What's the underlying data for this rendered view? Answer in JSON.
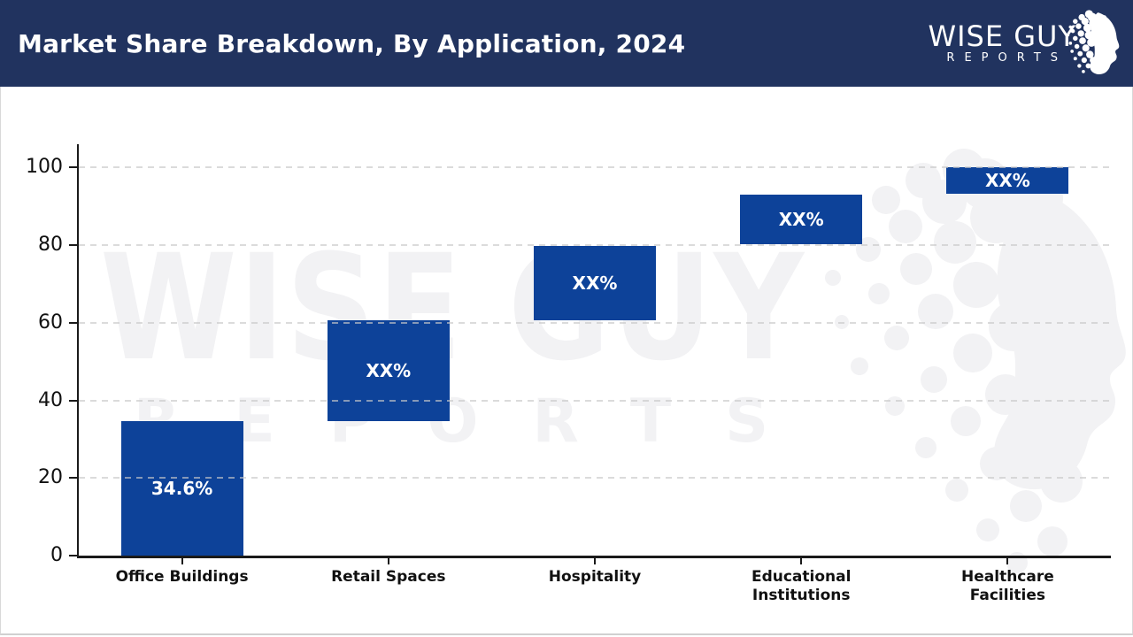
{
  "header": {
    "title": "Market Share Breakdown, By Application, 2024",
    "logo_line1": "WISE GUY",
    "logo_line2": "REPORTS",
    "bg_color": "#21335f"
  },
  "watermark": {
    "line1": "WISE GUY",
    "line2": "REPORTS"
  },
  "chart_data": {
    "type": "bar",
    "subtype": "waterfall",
    "title": "Market Share Breakdown, By Application, 2024",
    "categories": [
      "Office Buildings",
      "Retail Spaces",
      "Hospitality",
      "Educational Institutions",
      "Healthcare Facilities"
    ],
    "segments": [
      {
        "category": "Office Buildings",
        "start": 0,
        "end": 34.6,
        "label": "34.6%"
      },
      {
        "category": "Retail Spaces",
        "start": 34.6,
        "end": 60.6,
        "label": "XX%"
      },
      {
        "category": "Hospitality",
        "start": 60.7,
        "end": 79.8,
        "label": "XX%"
      },
      {
        "category": "Educational Institutions",
        "start": 80.2,
        "end": 92.9,
        "label": "XX%"
      },
      {
        "category": "Healthcare Facilities",
        "start": 93.2,
        "end": 100,
        "label": "XX%"
      }
    ],
    "y_ticks": [
      0,
      20,
      40,
      60,
      80,
      100
    ],
    "ylim": [
      0,
      106
    ],
    "xlabel": "",
    "ylabel": "",
    "grid": true,
    "grid_style": "dashed",
    "legend": false,
    "bar_color": "#0d4299",
    "bar_label_color": "#ffffff",
    "axis_color": "#1a1a1a"
  }
}
